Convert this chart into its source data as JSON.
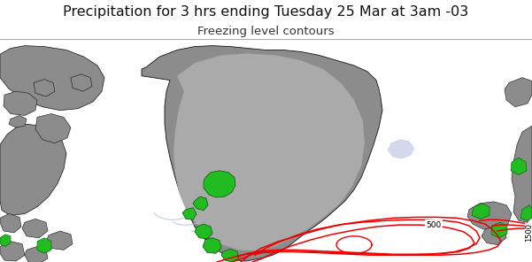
{
  "title": "Precipitation for 3 hrs ending Tuesday 25 Mar at 3am -03",
  "subtitle": "Freezing level contours",
  "title_fontsize": 11.5,
  "subtitle_fontsize": 9.5,
  "background_color": "#ffffff",
  "map_bg_color": "#dde4f0",
  "fig_width": 6.01,
  "fig_height": 2.96,
  "dpi": 100,
  "land_color": "#8c8c8c",
  "land_edge": "#111111",
  "ice_color": "#aaaaaa",
  "green_color": "#22bb22",
  "green_edge": "#005500",
  "red_color": "#ee0000",
  "label_bg": "#ffffff"
}
